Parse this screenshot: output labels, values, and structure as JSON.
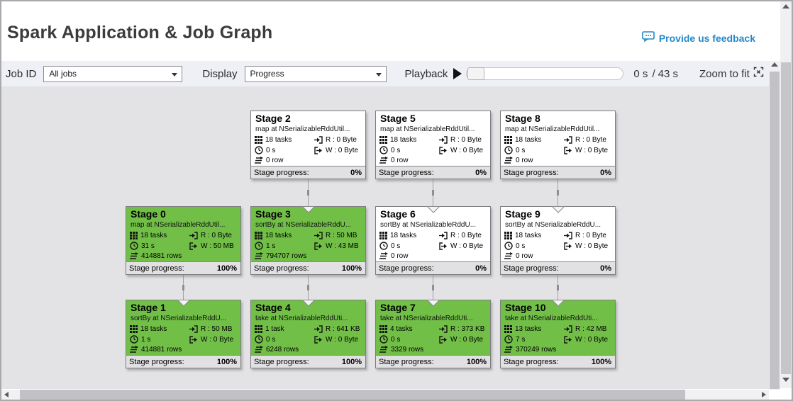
{
  "header": {
    "title": "Spark Application & Job Graph",
    "feedback_label": "Provide us feedback"
  },
  "toolbar": {
    "job_id_label": "Job ID",
    "job_id_value": "All jobs",
    "display_label": "Display",
    "display_value": "Progress",
    "playback_label": "Playback",
    "time_current": "0 s",
    "time_separator": "/",
    "time_total": "43 s",
    "zoom_to_fit_label": "Zoom to fit"
  },
  "graph": {
    "progress_label": "Stage progress:",
    "stages": [
      {
        "id": "2",
        "name": "Stage 2",
        "desc": "map at NSerializableRddUtil...",
        "tasks": "18 tasks",
        "read": "R : 0 Byte",
        "time": "0 s",
        "write": "W : 0 Byte",
        "rows": "0 row",
        "progress": "0%",
        "complete": false,
        "col": 1,
        "row": 0
      },
      {
        "id": "5",
        "name": "Stage 5",
        "desc": "map at NSerializableRddUtil...",
        "tasks": "18 tasks",
        "read": "R : 0 Byte",
        "time": "0 s",
        "write": "W : 0 Byte",
        "rows": "0 row",
        "progress": "0%",
        "complete": false,
        "col": 2,
        "row": 0
      },
      {
        "id": "8",
        "name": "Stage 8",
        "desc": "map at NSerializableRddUtil...",
        "tasks": "18 tasks",
        "read": "R : 0 Byte",
        "time": "0 s",
        "write": "W : 0 Byte",
        "rows": "0 row",
        "progress": "0%",
        "complete": false,
        "col": 3,
        "row": 0
      },
      {
        "id": "0",
        "name": "Stage 0",
        "desc": "map at NSerializableRddUtil...",
        "tasks": "18 tasks",
        "read": "R : 0 Byte",
        "time": "31 s",
        "write": "W : 50 MB",
        "rows": "414881 rows",
        "progress": "100%",
        "complete": true,
        "col": 0,
        "row": 1
      },
      {
        "id": "3",
        "name": "Stage 3",
        "desc": "sortBy at NSerializableRddU...",
        "tasks": "18 tasks",
        "read": "R : 50 MB",
        "time": "1 s",
        "write": "W : 43 MB",
        "rows": "794707 rows",
        "progress": "100%",
        "complete": true,
        "col": 1,
        "row": 1
      },
      {
        "id": "6",
        "name": "Stage 6",
        "desc": "sortBy at NSerializableRddU...",
        "tasks": "18 tasks",
        "read": "R : 0 Byte",
        "time": "0 s",
        "write": "W : 0 Byte",
        "rows": "0 row",
        "progress": "0%",
        "complete": false,
        "col": 2,
        "row": 1
      },
      {
        "id": "9",
        "name": "Stage 9",
        "desc": "sortBy at NSerializableRddU...",
        "tasks": "18 tasks",
        "read": "R : 0 Byte",
        "time": "0 s",
        "write": "W : 0 Byte",
        "rows": "0 row",
        "progress": "0%",
        "complete": false,
        "col": 3,
        "row": 1
      },
      {
        "id": "1",
        "name": "Stage 1",
        "desc": "sortBy at NSerializableRddU...",
        "tasks": "18 tasks",
        "read": "R : 50 MB",
        "time": "1 s",
        "write": "W : 0 Byte",
        "rows": "414881 rows",
        "progress": "100%",
        "complete": true,
        "col": 0,
        "row": 2
      },
      {
        "id": "4",
        "name": "Stage 4",
        "desc": "take at NSerializableRddUti...",
        "tasks": "1 task",
        "read": "R : 641 KB",
        "time": "0 s",
        "write": "W : 0 Byte",
        "rows": "6248 rows",
        "progress": "100%",
        "complete": true,
        "col": 1,
        "row": 2
      },
      {
        "id": "7",
        "name": "Stage 7",
        "desc": "take at NSerializableRddUti...",
        "tasks": "4 tasks",
        "read": "R : 373 KB",
        "time": "0 s",
        "write": "W : 0 Byte",
        "rows": "3329 rows",
        "progress": "100%",
        "complete": true,
        "col": 2,
        "row": 2
      },
      {
        "id": "10",
        "name": "Stage 10",
        "desc": "take at NSerializableRddUti...",
        "tasks": "13 tasks",
        "read": "R : 42 MB",
        "time": "7 s",
        "write": "W : 0 Byte",
        "rows": "370249 rows",
        "progress": "100%",
        "complete": true,
        "col": 3,
        "row": 2
      }
    ],
    "edges": [
      {
        "from": "2",
        "to": "3"
      },
      {
        "from": "5",
        "to": "6"
      },
      {
        "from": "8",
        "to": "9"
      },
      {
        "from": "0",
        "to": "1"
      },
      {
        "from": "3",
        "to": "4"
      },
      {
        "from": "6",
        "to": "7"
      },
      {
        "from": "9",
        "to": "10"
      }
    ]
  },
  "colors": {
    "stage_complete_green": "#71bf47",
    "stage_pending_white": "#ffffff",
    "link_blue": "#2289ca",
    "toolbar_bg": "#eef0f6",
    "graph_bg": "#e3e3e5"
  }
}
